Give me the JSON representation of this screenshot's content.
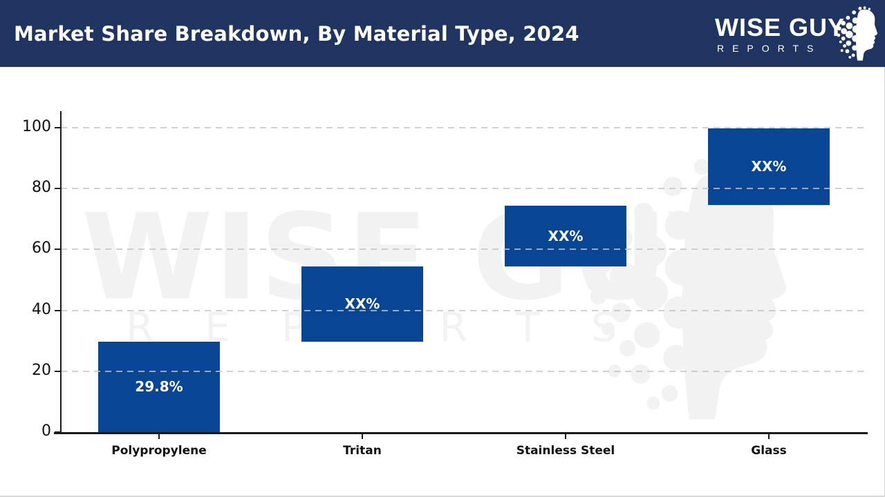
{
  "header": {
    "title": "Market Share Breakdown, By Material Type, 2024",
    "logo": {
      "line1": "WISE GUY",
      "line2": "REPORTS"
    }
  },
  "watermark": {
    "line1": "WISE GUY",
    "line2": "REPORTS"
  },
  "chart_data": {
    "type": "bar",
    "subtype": "waterfall-floating-bars",
    "title": "Market Share Breakdown, By Material Type, 2024",
    "categories": [
      "Polypropylene",
      "Tritan",
      "Stainless Steel",
      "Glass"
    ],
    "series": [
      {
        "name": "Market Share (%)",
        "segments": [
          {
            "category": "Polypropylene",
            "start": 0,
            "end": 29.8,
            "label": "29.8%"
          },
          {
            "category": "Tritan",
            "start": 29.8,
            "end": 54.4,
            "label": "XX%"
          },
          {
            "category": "Stainless Steel",
            "start": 54.4,
            "end": 74.4,
            "label": "XX%"
          },
          {
            "category": "Glass",
            "start": 74.6,
            "end": 99.8,
            "label": "XX%"
          }
        ]
      }
    ],
    "xlabel": "",
    "ylabel": "",
    "ylim": [
      0,
      100
    ],
    "yticks": [
      0,
      20,
      40,
      60,
      80,
      100
    ],
    "grid": "horizontal-dashed",
    "legend": "none",
    "bar_color": "#084595",
    "bar_label_color": "#ffffff",
    "header_bg_color": "#1f3460",
    "axis_color": "#1a1a1a",
    "grid_color": "#c4c4c4",
    "watermark_color": "#f2f2f2"
  }
}
